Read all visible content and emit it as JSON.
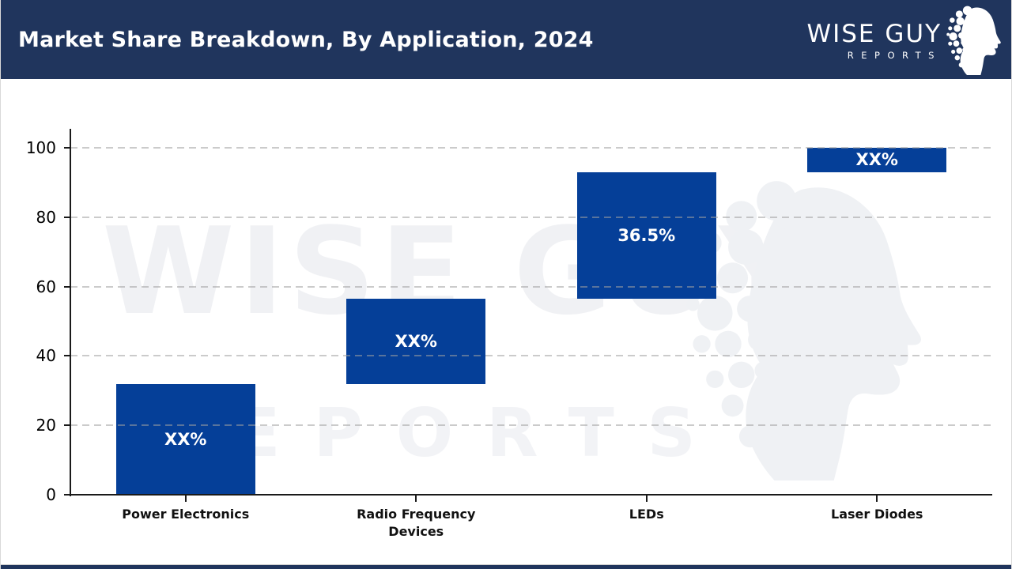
{
  "header": {
    "title": "Market Share Breakdown, By Application, 2024",
    "bg_color": "#20355d",
    "logo": {
      "name": "WISE GUY",
      "sub": "REPORTS"
    }
  },
  "watermark": {
    "line1": "WISE GUY",
    "line2": "REPORTS"
  },
  "footer": {
    "bg_color": "#20355d"
  },
  "chart_data": {
    "type": "bar",
    "subtype": "waterfall",
    "title": "Market Share Breakdown, By Application, 2024",
    "categories": [
      "Power Electronics",
      "Radio Frequency Devices",
      "LEDs",
      "Laser Diodes"
    ],
    "segments": [
      {
        "category": "Power Electronics",
        "start": 0,
        "end": 32,
        "label": "XX%"
      },
      {
        "category": "Radio Frequency Devices",
        "start": 32,
        "end": 56.5,
        "label": "XX%"
      },
      {
        "category": "LEDs",
        "start": 56.5,
        "end": 93,
        "label": "36.5%"
      },
      {
        "category": "Laser Diodes",
        "start": 93,
        "end": 100,
        "label": "XX%"
      }
    ],
    "xlabel": "",
    "ylabel": "",
    "yticks": [
      0,
      20,
      40,
      60,
      80,
      100
    ],
    "ylim": [
      0,
      105
    ],
    "grid": "horizontal-dashed",
    "gridline_color": "#d9d9d9",
    "legend": "none",
    "bar_color": "#053f98",
    "bar_label_color": "#ffffff"
  }
}
